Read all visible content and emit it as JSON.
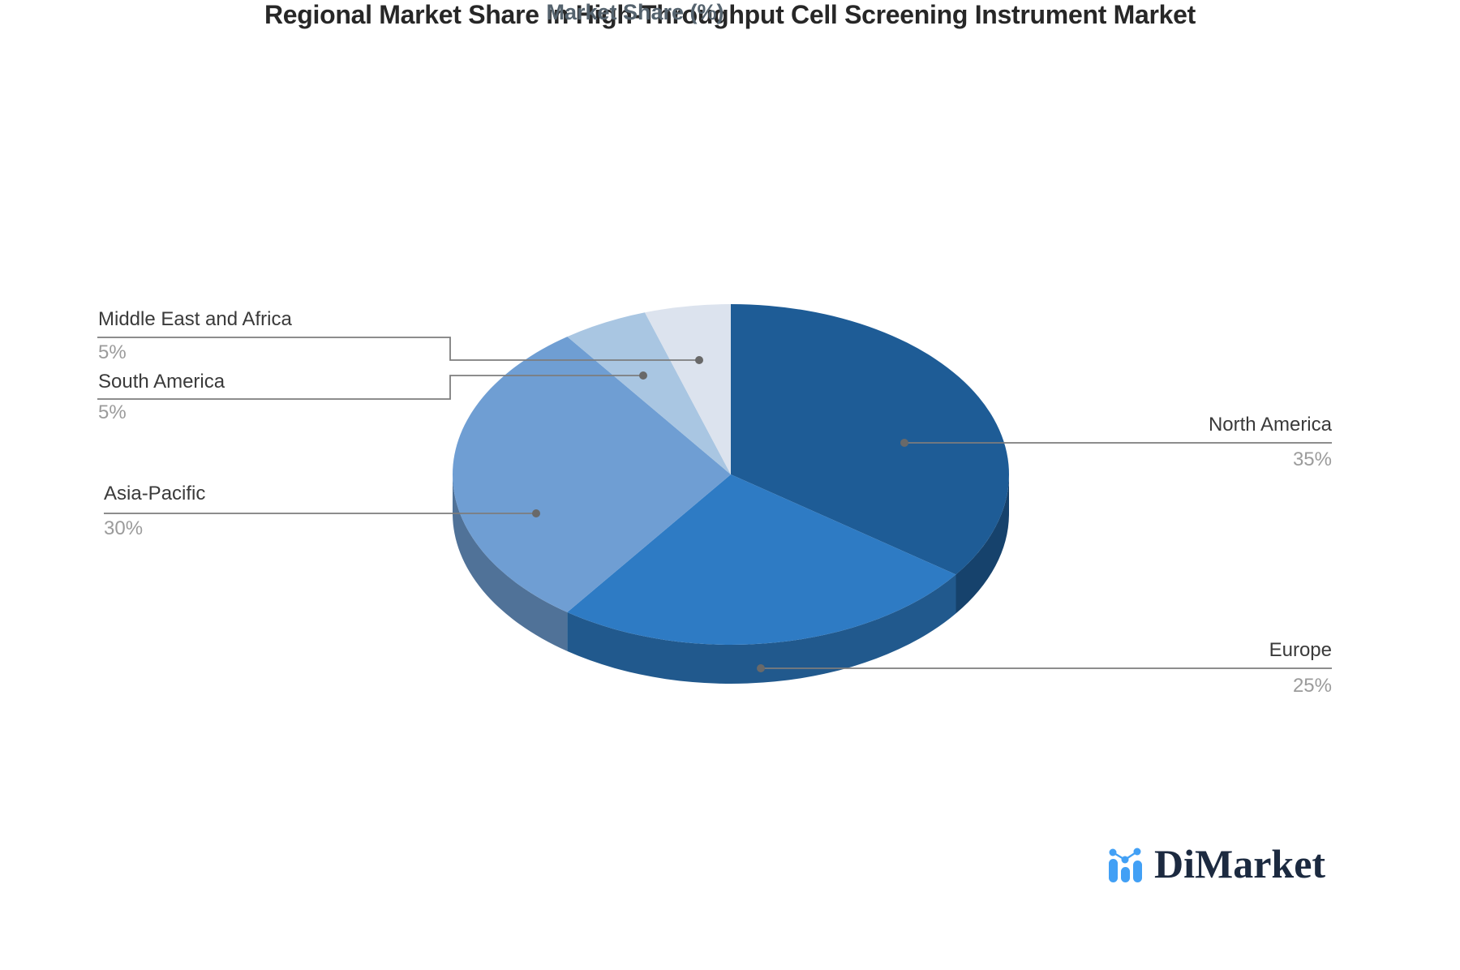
{
  "header": {
    "title": "Regional Market Share in High-Throughput Cell Screening Instrument Market",
    "subtitle": "Market Share (%)"
  },
  "brand": {
    "wordmark": "DiMarket"
  },
  "chart_data": {
    "type": "pie",
    "style": "3d",
    "title": "Regional Market Share in High-Throughput Cell Screening Instrument Market",
    "subtitle": "Market Share (%)",
    "unit": "percent",
    "start_angle_deg": 0,
    "direction": "clockwise",
    "legend": "none",
    "leader_lines": true,
    "categories": [
      "North America",
      "Europe",
      "Asia-Pacific",
      "South America",
      "Middle East and Africa"
    ],
    "values": [
      35,
      25,
      30,
      5,
      5
    ],
    "slices": [
      {
        "label": "North America",
        "value": 35,
        "display": "35%",
        "color": "#1E5C96",
        "label_side": "right"
      },
      {
        "label": "Europe",
        "value": 25,
        "display": "25%",
        "color": "#2E7BC4",
        "label_side": "right"
      },
      {
        "label": "Asia-Pacific",
        "value": 30,
        "display": "30%",
        "color": "#6F9ED3",
        "label_side": "left"
      },
      {
        "label": "South America",
        "value": 5,
        "display": "5%",
        "color": "#A9C6E2",
        "label_side": "left"
      },
      {
        "label": "Middle East and Africa",
        "value": 5,
        "display": "5%",
        "color": "#DCE3EE",
        "label_side": "left"
      }
    ],
    "colors": {
      "leader_line": "#7D7D7D",
      "dot": "#696969",
      "label_text": "#3A3A3A",
      "pct_text": "#9B9B9B",
      "title": "#272727",
      "subtitle": "#55636E",
      "logo_blue": "#42A0F5",
      "logo_text": "#1C2A40"
    }
  }
}
